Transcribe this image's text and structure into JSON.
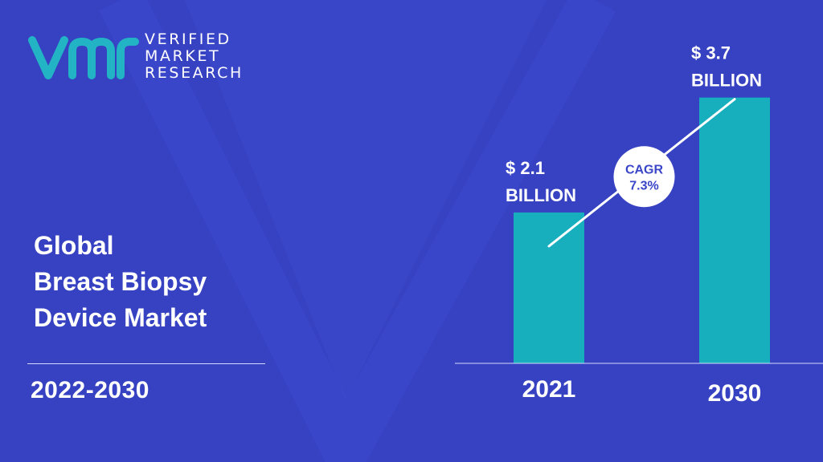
{
  "logo": {
    "icon": "vmr-logo-icon",
    "lines": [
      "VERIFIED",
      "MARKET",
      "RESEARCH"
    ]
  },
  "title_lines": [
    "Global",
    "Breast Biopsy",
    "Device Market"
  ],
  "period": "2022-2030",
  "colors": {
    "background": "#3a46c8",
    "background_shape": "#3340bd",
    "bar": "#17aebe",
    "logo": "#22b3c4",
    "text": "#ffffff"
  },
  "chart_data": {
    "type": "bar",
    "categories": [
      "2021",
      "2030"
    ],
    "values": [
      2.1,
      3.7
    ],
    "value_labels": [
      [
        "$ 2.1",
        "BILLION"
      ],
      [
        "$ 3.7",
        "BILLION"
      ]
    ],
    "annotation": {
      "lines": [
        "CAGR",
        "7.3%"
      ]
    },
    "ylim": [
      0,
      4.5
    ],
    "grid": false,
    "title": "",
    "xlabel": "",
    "ylabel": ""
  }
}
